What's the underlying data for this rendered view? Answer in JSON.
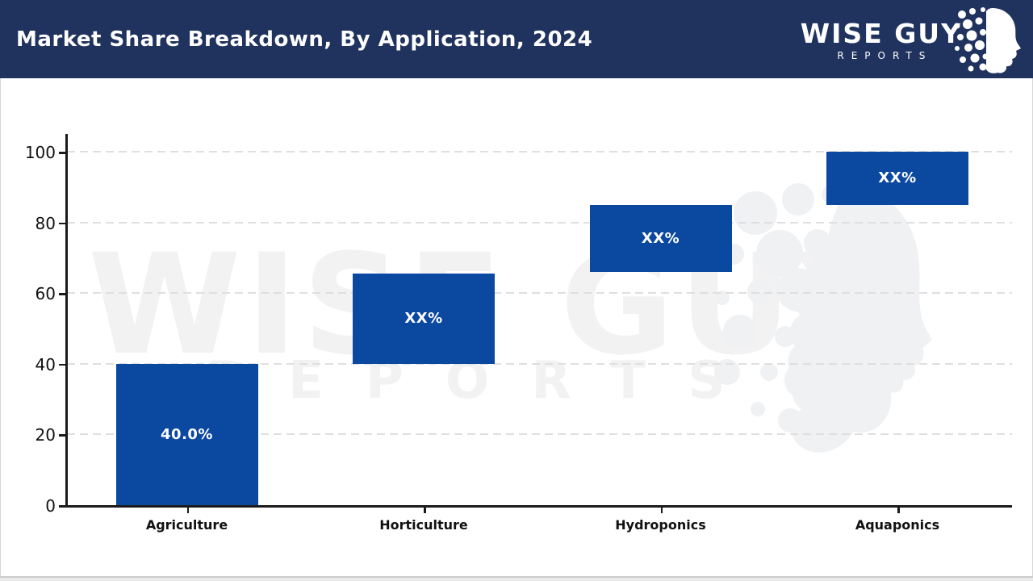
{
  "header": {
    "title": "Market Share Breakdown, By Application, 2024",
    "logo": {
      "line1": "WISE GUY",
      "line2": "REPORTS"
    }
  },
  "watermark": {
    "line1": "WISE GUY",
    "line2": "REPORTS"
  },
  "chart_data": {
    "type": "bar",
    "subtype": "waterfall",
    "title": "Market Share Breakdown, By Application, 2024",
    "xlabel": "",
    "ylabel": "",
    "categories": [
      "Agriculture",
      "Horticulture",
      "Hydroponics",
      "Aquaponics"
    ],
    "series": [
      {
        "name": "Market Share (%)",
        "segments": [
          {
            "category": "Agriculture",
            "from": 0,
            "to": 40,
            "label": "40.0%"
          },
          {
            "category": "Horticulture",
            "from": 40,
            "to": 65.5,
            "label": "XX%"
          },
          {
            "category": "Hydroponics",
            "from": 66,
            "to": 85,
            "label": "XX%"
          },
          {
            "category": "Aquaponics",
            "from": 85,
            "to": 100,
            "label": "XX%"
          }
        ]
      }
    ],
    "yticks": [
      0,
      20,
      40,
      60,
      80,
      100
    ],
    "ylim": [
      0,
      105
    ],
    "grid": true,
    "grid_style": "dashed",
    "legend": "none",
    "colors": {
      "bar": "#0b48a0",
      "bar_label": "#ffffff",
      "header_bg": "#20335f",
      "axis": "#1a1a1a",
      "gridline": "#dfdfdf",
      "watermark": "#f2f2f3"
    }
  }
}
